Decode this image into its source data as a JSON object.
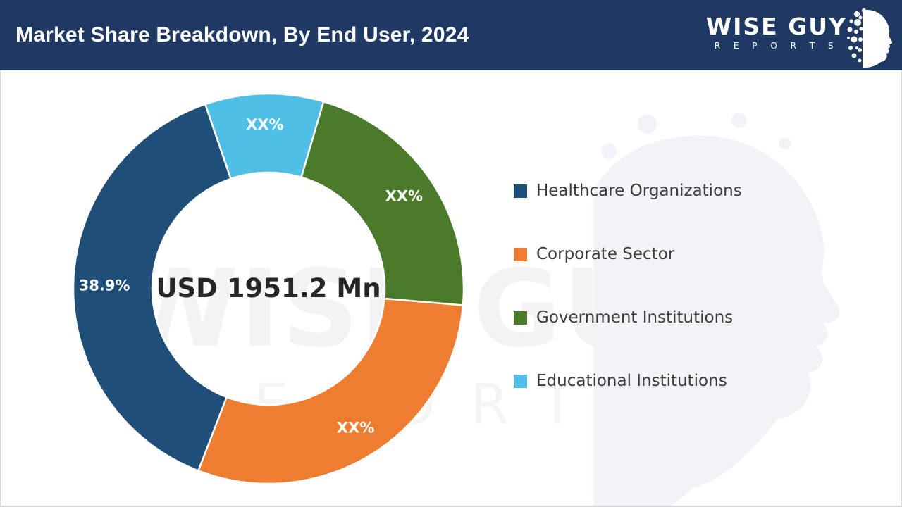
{
  "header": {
    "title": "Market Share Breakdown, By End User, 2024",
    "bg_color": "#203864",
    "brand": {
      "line1": "WISE GUY",
      "line2": "R E P O R T S"
    }
  },
  "watermark": {
    "line1": "WISE GUY",
    "line2": "REPORTS"
  },
  "chart_data": {
    "type": "pie",
    "donut": true,
    "title": "Market Share Breakdown, By End User, 2024",
    "center_label": "USD 1951.2 Mn",
    "categories": [
      "Healthcare Organizations",
      "Corporate Sector",
      "Government Institutions",
      "Educational Institutions"
    ],
    "values": [
      38.9,
      29.5,
      21.8,
      9.8
    ],
    "slice_labels": [
      "38.9%",
      "XX%",
      "XX%",
      "XX%"
    ],
    "colors": [
      "#1F4E79",
      "#ED7D31",
      "#4B7A2B",
      "#4FBFE5"
    ],
    "slice_label_color": "#FFFFFF",
    "center_label_color": "#262626",
    "start_angle_deg": 108.9,
    "direction": "counterclockwise",
    "legend_position": "right"
  },
  "legend": {
    "items": [
      {
        "label": "Healthcare Organizations",
        "color": "#1F4E79"
      },
      {
        "label": "Corporate Sector",
        "color": "#ED7D31"
      },
      {
        "label": "Government Institutions",
        "color": "#4B7A2B"
      },
      {
        "label": "Educational Institutions",
        "color": "#4FBFE5"
      }
    ]
  }
}
